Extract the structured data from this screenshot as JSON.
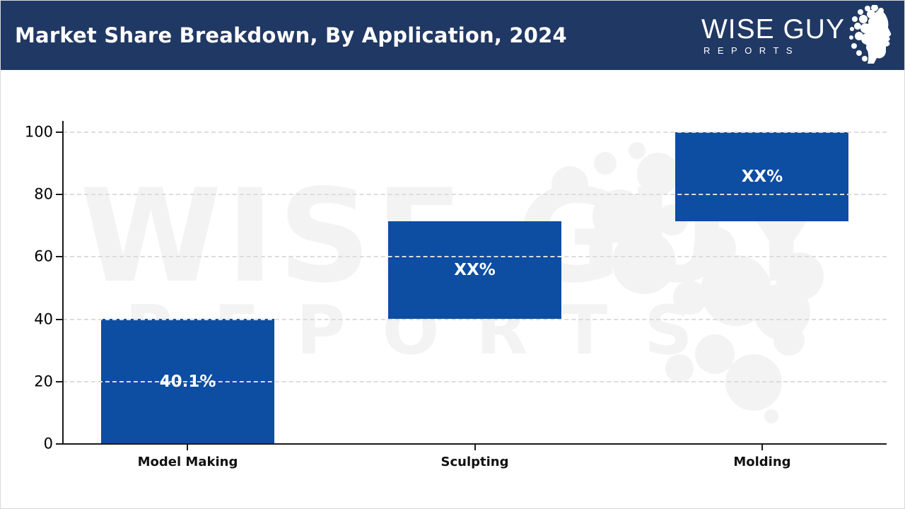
{
  "header": {
    "title": "Market Share Breakdown, By Application, 2024",
    "bg_color": "#203864",
    "logo": {
      "line1": "WISE GUY",
      "line2": "REPORTS",
      "icon": "dotted-head-profile"
    }
  },
  "watermark": {
    "line1": "WISE GUY",
    "line2": "REPORTS"
  },
  "chart_data": {
    "type": "bar",
    "subtype": "waterfall",
    "title": "Market Share Breakdown, By Application, 2024",
    "categories": [
      "Model Making",
      "Sculpting",
      "Molding"
    ],
    "segments": [
      {
        "category": "Model Making",
        "start": 0,
        "end": 40.1,
        "label": "40.1%"
      },
      {
        "category": "Sculpting",
        "start": 40.1,
        "end": 71.4,
        "label": "XX%"
      },
      {
        "category": "Molding",
        "start": 71.4,
        "end": 100,
        "label": "XX%"
      }
    ],
    "xlabel": "",
    "ylabel": "",
    "ylim": [
      0,
      100
    ],
    "yticks": [
      0,
      20,
      40,
      60,
      80,
      100
    ],
    "grid": "horizontal-dashed",
    "legend": "none",
    "bar_color": "#0d4da2",
    "bar_label_color": "#ffffff",
    "axis_color": "#1a1a1a",
    "grid_color": "#dcdcdc"
  }
}
